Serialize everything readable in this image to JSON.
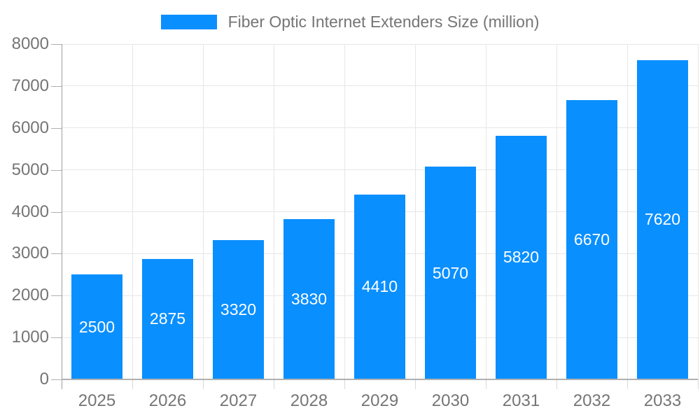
{
  "chart_data": {
    "type": "bar",
    "legend": "Fiber Optic Internet Extenders Size (million)",
    "legend_position": "top",
    "categories": [
      "2025",
      "2026",
      "2027",
      "2028",
      "2029",
      "2030",
      "2031",
      "2032",
      "2033"
    ],
    "values": [
      2500,
      2875,
      3320,
      3830,
      4410,
      5070,
      5820,
      6670,
      7620
    ],
    "ylim": [
      0,
      8000
    ],
    "ytick_step": 1000,
    "grid": true,
    "value_labels": "inside-center",
    "colors": {
      "bar": "#0a8fff",
      "grid": "#e6e6e6",
      "axis": "#b0b0b0",
      "tick_text": "#757575",
      "value_label": "#ffffff",
      "background": "#ffffff"
    }
  }
}
